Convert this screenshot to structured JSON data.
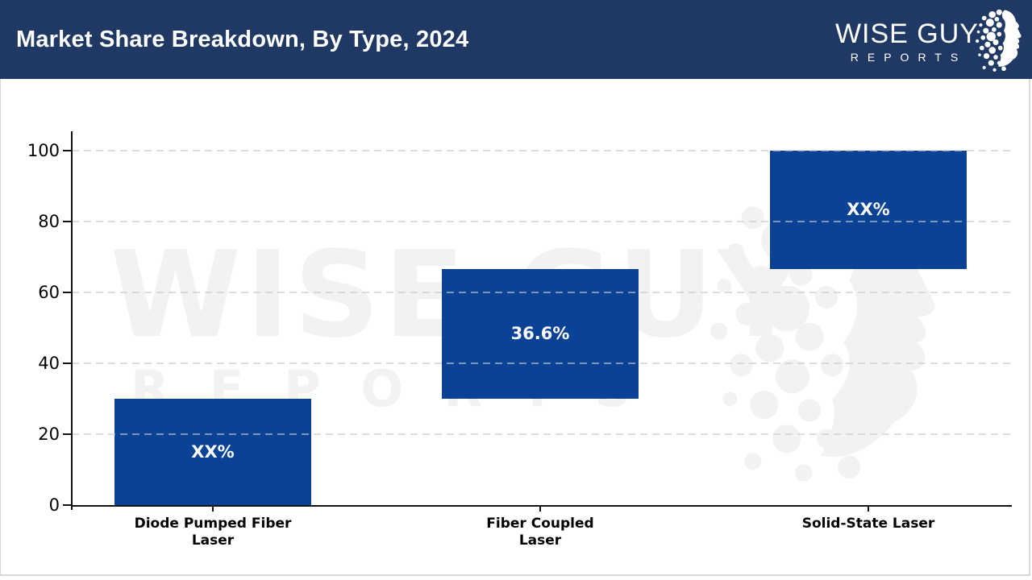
{
  "header": {
    "title": "Market Share Breakdown, By Type, 2024",
    "logo": {
      "wordmark": "WISE GUY",
      "reports": "REPORTS"
    }
  },
  "watermark": {
    "wordmark": "WISE GUY",
    "reports": "REPORTS"
  },
  "colors": {
    "header_bg": "#1f3864",
    "bar": "#0a4296",
    "title_text": "#ffffff",
    "gridline": "#c8c8c8",
    "axis": "#111111",
    "watermark": "#f1f2f4"
  },
  "chart_data": {
    "type": "bar",
    "subtype": "stacked-percentage-waterfall",
    "title": "Market Share Breakdown, By Type, 2024",
    "categories": [
      "Diode Pumped Fiber Laser",
      "Fiber Coupled Laser",
      "Solid-State Laser"
    ],
    "series": [
      {
        "name": "Diode Pumped Fiber Laser",
        "label": "XX%",
        "start": 0,
        "end": 30,
        "height_pct": 30
      },
      {
        "name": "Fiber Coupled Laser",
        "label": "36.6%",
        "start": 30,
        "end": 66.6,
        "height_pct": 36.6
      },
      {
        "name": "Solid-State Laser",
        "label": "XX%",
        "start": 66.6,
        "end": 100,
        "height_pct": 33.4
      }
    ],
    "category_label_lines": [
      [
        "Diode Pumped Fiber",
        "Laser"
      ],
      [
        "Fiber Coupled",
        "Laser"
      ],
      [
        "Solid-State Laser"
      ]
    ],
    "xlabel": "",
    "ylabel": "",
    "yticks": [
      0,
      20,
      40,
      60,
      80,
      100
    ],
    "ylim": [
      0,
      105
    ],
    "grid": "dashed-horizontal",
    "legend": "none",
    "bar_color": "#0a4296"
  }
}
